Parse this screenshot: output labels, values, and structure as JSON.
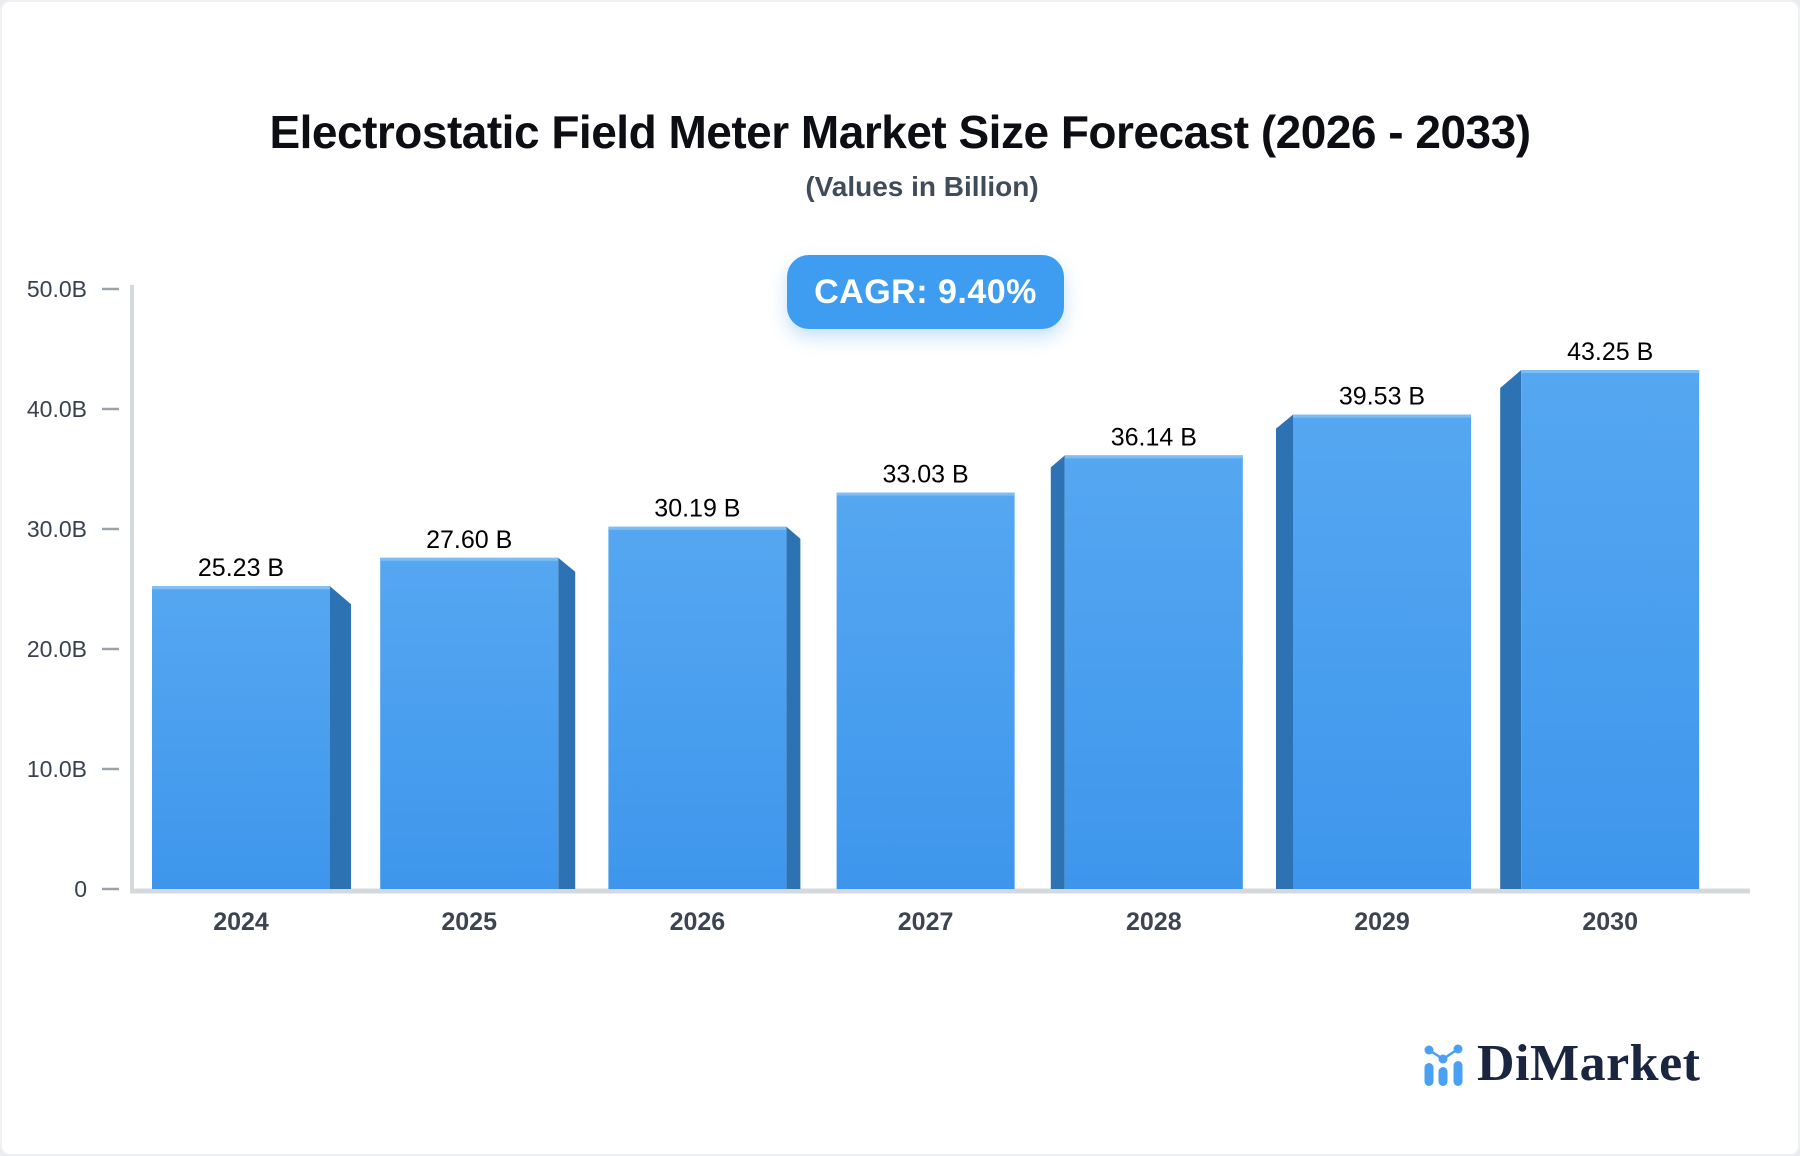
{
  "header": {
    "title": "Electrostatic Field Meter Market Size Forecast (2026 - 2033)",
    "subtitle": "(Values in Billion)",
    "cagr_badge": "CAGR: 9.40%"
  },
  "chart_data": {
    "type": "bar",
    "title": "Electrostatic Field Meter Market Size Forecast (2026 - 2033)",
    "subtitle": "(Values in Billion)",
    "categories": [
      "2024",
      "2025",
      "2026",
      "2027",
      "2028",
      "2029",
      "2030"
    ],
    "values": [
      25.23,
      27.6,
      30.19,
      33.03,
      36.14,
      39.53,
      43.25
    ],
    "value_labels": [
      "25.23 B",
      "27.60 B",
      "30.19 B",
      "33.03 B",
      "36.14 B",
      "39.53 B",
      "43.25 B"
    ],
    "cagr_percent": "9.40%",
    "ylim": [
      0,
      50
    ],
    "yticks": [
      0,
      10,
      20,
      30,
      40,
      50
    ],
    "ytick_labels": [
      "0",
      "10.0B",
      "20.0B",
      "30.0B",
      "40.0B",
      "50.0B"
    ],
    "grid": false,
    "legend": null,
    "bar_style_3d": true,
    "colors": {
      "bar_face_top": "#55A7F1",
      "bar_face_bottom": "#3E96EC",
      "bar_side": "#2D73B4",
      "bar_top_highlight": "#7FBDF4",
      "axis_line": "#D5D8DE",
      "tick_mark": "#99A1AB",
      "ytick_text": "#3A414E",
      "xtick_text": "#3C4452",
      "value_text": "#000000",
      "badge_bg": "#3F9DF1"
    }
  },
  "footer": {
    "brand": "DiMarket",
    "logo_icon": "bar-chart-logo-icon",
    "brand_color": "#1A2640",
    "icon_color": "#4AA0F2"
  }
}
